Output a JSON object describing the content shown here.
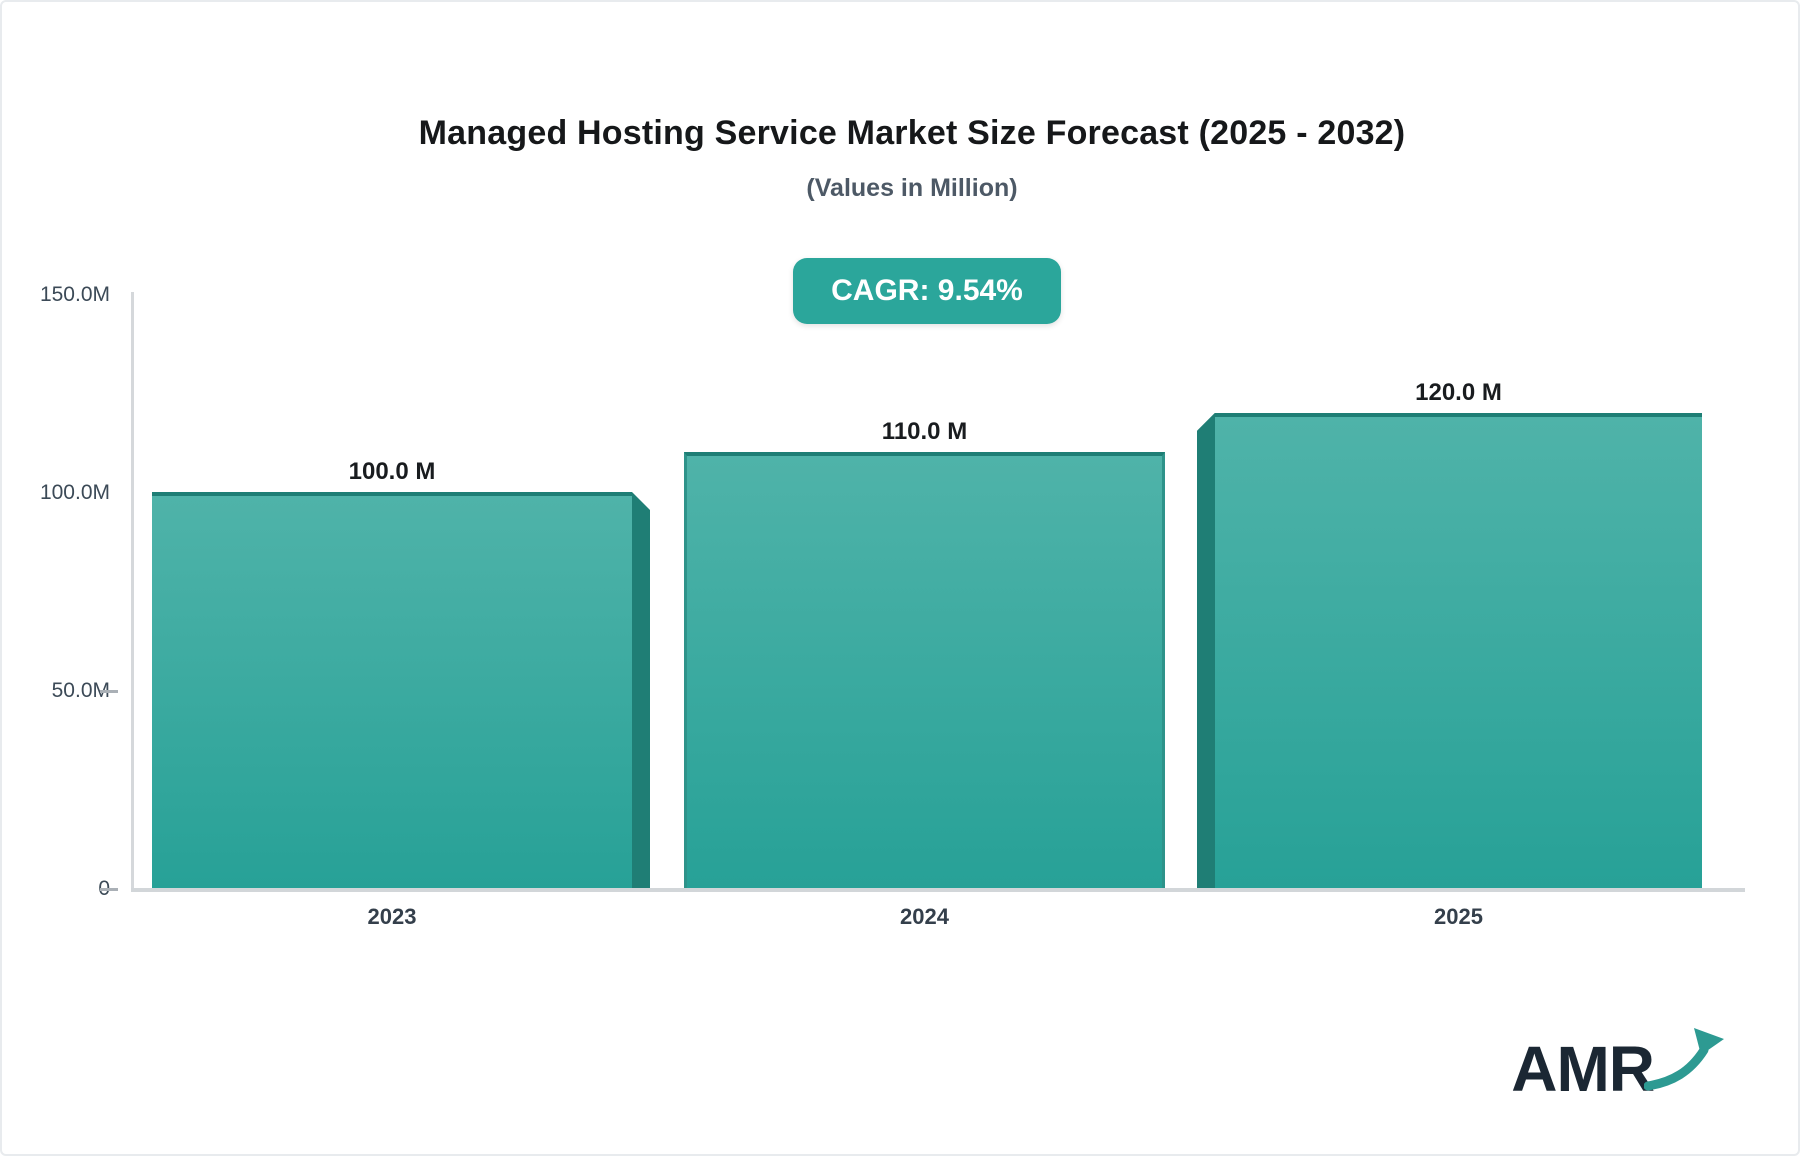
{
  "header": {
    "title": "Managed Hosting Service Market Size Forecast (2025 - 2032)",
    "subtitle": "(Values in Million)"
  },
  "badge": {
    "label": "CAGR: 9.54%",
    "bg": "#2ba69b",
    "text_color": "#ffffff"
  },
  "chart_data": {
    "type": "bar",
    "title": "Managed Hosting Service Market Size Forecast (2025 - 2032)",
    "subtitle": "(Values in Million)",
    "unit": "Million",
    "categories": [
      "2023",
      "2024",
      "2025"
    ],
    "values": [
      100.0,
      110.0,
      120.0
    ],
    "value_labels": [
      "100.0 M",
      "110.0 M",
      "120.0 M"
    ],
    "y_axis": {
      "min": 0,
      "max": 150,
      "ticks": [
        {
          "label": "150.0M",
          "value": 150,
          "tick_mark": false
        },
        {
          "label": "100.0M",
          "value": 100,
          "tick_mark": false
        },
        {
          "label": "50.0M",
          "value": 50,
          "tick_mark": true
        },
        {
          "label": "0",
          "value": 0,
          "tick_mark": true
        }
      ]
    },
    "grid": false,
    "legend": false,
    "colors": {
      "bar_gradient_top": "#4fb3a9",
      "bar_gradient_bottom": "#27a197",
      "bar_side": "#1f7e75",
      "bar_edge": "#1e7e75",
      "axis": "#d2d6d9"
    }
  },
  "logo": {
    "text": "AMR",
    "text_color": "#1b2733",
    "arrow_color": "#2d9a92",
    "arrow_icon": "growth-arrow"
  }
}
